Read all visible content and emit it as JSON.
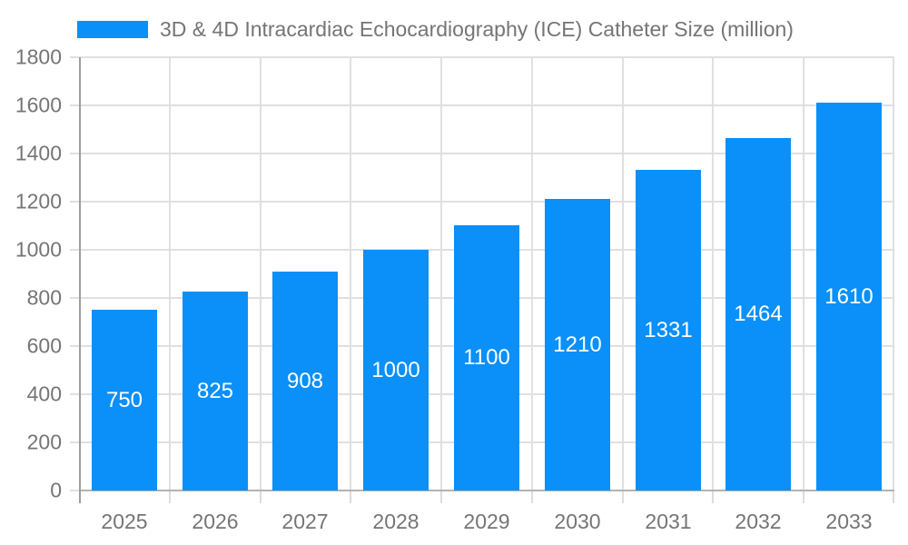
{
  "legend": {
    "label": "3D & 4D Intracardiac Echocardiography (ICE) Catheter Size (million)"
  },
  "chart_data": {
    "type": "bar",
    "title": "",
    "series_name": "3D & 4D Intracardiac Echocardiography (ICE) Catheter Size (million)",
    "categories": [
      "2025",
      "2026",
      "2027",
      "2028",
      "2029",
      "2030",
      "2031",
      "2032",
      "2033"
    ],
    "values": [
      750,
      825,
      908,
      1000,
      1100,
      1210,
      1331,
      1464,
      1610
    ],
    "value_labels": [
      "750",
      "825",
      "908",
      "1000",
      "1100",
      "1210",
      "1331",
      "1464",
      "1610"
    ],
    "xlabel": "",
    "ylabel": "",
    "ylim": [
      0,
      1800
    ],
    "ytick_step": 200,
    "ytick_labels": [
      "0",
      "200",
      "400",
      "600",
      "800",
      "1000",
      "1200",
      "1400",
      "1600",
      "1800"
    ],
    "grid": true,
    "legend_position": "top-left",
    "colors": {
      "bar": "#0a90f8",
      "bar_value_text": "#ffffff",
      "axis_text": "#757575",
      "gridline": "#e0e0e0",
      "axis_line": "#9e9e9e",
      "background": "#ffffff"
    }
  }
}
